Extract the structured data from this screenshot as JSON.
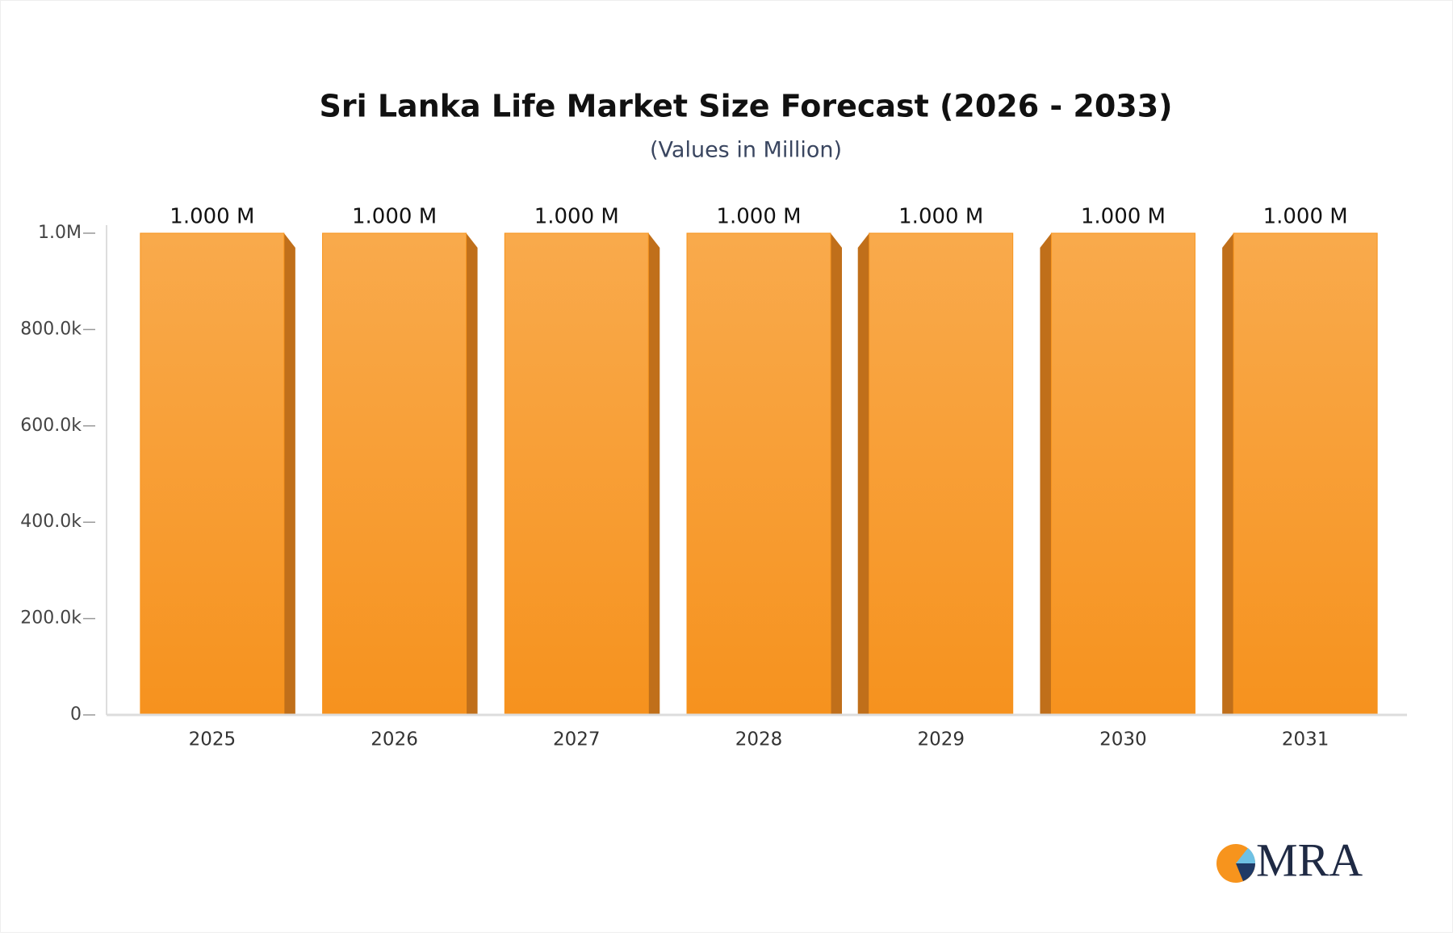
{
  "chart_data": {
    "type": "bar",
    "title": "Sri Lanka Life Market Size Forecast (2026 - 2033)",
    "subtitle": "(Values in Million)",
    "categories": [
      "2025",
      "2026",
      "2027",
      "2028",
      "2029",
      "2030",
      "2031"
    ],
    "values": [
      1000000,
      1000000,
      1000000,
      1000000,
      1000000,
      1000000,
      1000000
    ],
    "value_labels": [
      "1.000 M",
      "1.000 M",
      "1.000 M",
      "1.000 M",
      "1.000 M",
      "1.000 M",
      "1.000 M"
    ],
    "color": "#f7941d",
    "ylim": [
      0,
      1000000
    ],
    "yticks": [
      0,
      {
        "value": 200000,
        "label": "200.0k"
      },
      {
        "value": 400000,
        "label": "400.0k"
      },
      {
        "value": 600000,
        "label": "600.0k"
      },
      {
        "value": 800000,
        "label": "800.0k"
      },
      {
        "value": 1000000,
        "label": "1.0M"
      }
    ],
    "grid": false
  },
  "logo": "MRA"
}
